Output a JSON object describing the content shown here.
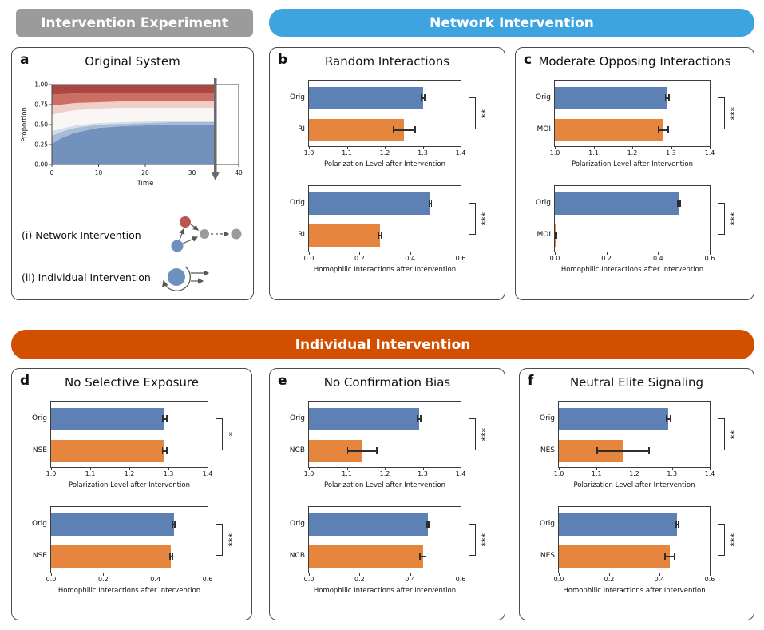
{
  "headers": {
    "experiment": "Intervention Experiment",
    "network": "Network Intervention",
    "individual": "Individual Intervention"
  },
  "colors": {
    "header_gray": "#9b9b9b",
    "header_blue": "#3ea4e0",
    "header_orange": "#d24f00",
    "orig_bar": "#5d81b4",
    "treat_bar": "#e6853e"
  },
  "panel_a": {
    "letter": "a",
    "title": "Original System",
    "items": [
      {
        "label": "(i) Network Intervention",
        "icon": "network-intervention-icon"
      },
      {
        "label": "(ii) Individual Intervention",
        "icon": "individual-intervention-icon"
      }
    ]
  },
  "panels": [
    {
      "letter": "b",
      "title": "Random Interactions",
      "chart_idx": [
        1,
        2
      ]
    },
    {
      "letter": "c",
      "title": "Moderate Opposing Interactions",
      "chart_idx": [
        3,
        4
      ]
    },
    {
      "letter": "d",
      "title": "No Selective Exposure",
      "chart_idx": [
        5,
        6
      ]
    },
    {
      "letter": "e",
      "title": "No Confirmation Bias",
      "chart_idx": [
        7,
        8
      ]
    },
    {
      "letter": "f",
      "title": "Neutral Elite Signaling",
      "chart_idx": [
        9,
        10
      ]
    }
  ],
  "chart_data": [
    {
      "type": "area",
      "panel": "a",
      "title": "Original System",
      "xlabel": "Time",
      "ylabel": "Proportion",
      "xlim": [
        0,
        40
      ],
      "ylim": [
        0,
        1
      ],
      "xticks": [
        "0",
        "10",
        "20",
        "30",
        "40"
      ],
      "yticks": [
        "0.00",
        "0.25",
        "0.50",
        "0.75",
        "1.00"
      ],
      "intervention_x": 35,
      "x": [
        0,
        2,
        5,
        10,
        15,
        20,
        25,
        30,
        35
      ],
      "series": [
        {
          "name": "opinion-strong-blue",
          "color": "#7292bd",
          "values": [
            0.26,
            0.33,
            0.4,
            0.46,
            0.48,
            0.49,
            0.5,
            0.5,
            0.5
          ]
        },
        {
          "name": "opinion-blue",
          "color": "#a6bcd6",
          "values": [
            0.1,
            0.08,
            0.06,
            0.04,
            0.03,
            0.03,
            0.03,
            0.03,
            0.03
          ]
        },
        {
          "name": "opinion-weak-blue",
          "color": "#d3deea",
          "values": [
            0.06,
            0.04,
            0.03,
            0.02,
            0.02,
            0.02,
            0.01,
            0.01,
            0.01
          ]
        },
        {
          "name": "opinion-neutral",
          "color": "#faf6f4",
          "values": [
            0.2,
            0.2,
            0.19,
            0.18,
            0.18,
            0.17,
            0.17,
            0.17,
            0.17
          ]
        },
        {
          "name": "opinion-weak-red",
          "color": "#f0cfc8",
          "values": [
            0.12,
            0.1,
            0.09,
            0.08,
            0.08,
            0.08,
            0.08,
            0.08,
            0.08
          ]
        },
        {
          "name": "opinion-red",
          "color": "#cc6e64",
          "values": [
            0.14,
            0.13,
            0.12,
            0.11,
            0.1,
            0.1,
            0.1,
            0.1,
            0.1
          ]
        },
        {
          "name": "opinion-strong-red",
          "color": "#a84840",
          "values": [
            0.12,
            0.12,
            0.11,
            0.11,
            0.11,
            0.11,
            0.11,
            0.11,
            0.11
          ]
        }
      ]
    },
    {
      "type": "bar",
      "panel": "b",
      "position": "top",
      "orientation": "horizontal",
      "categories": [
        "Orig",
        "RI"
      ],
      "values": [
        1.3,
        1.25
      ],
      "errors": [
        0.006,
        0.03
      ],
      "xlim": [
        1.0,
        1.4
      ],
      "xticks": [
        "1.0",
        "1.1",
        "1.2",
        "1.3",
        "1.4"
      ],
      "xlabel": "Polarization Level after Intervention",
      "significance": "**"
    },
    {
      "type": "bar",
      "panel": "b",
      "position": "bottom",
      "orientation": "horizontal",
      "categories": [
        "Orig",
        "RI"
      ],
      "values": [
        0.48,
        0.28
      ],
      "errors": [
        0.006,
        0.008
      ],
      "xlim": [
        0.0,
        0.6
      ],
      "xticks": [
        "0.0",
        "0.2",
        "0.4",
        "0.6"
      ],
      "xlabel": "Homophilic Interactions after Intervention",
      "significance": "***"
    },
    {
      "type": "bar",
      "panel": "c",
      "position": "top",
      "orientation": "horizontal",
      "categories": [
        "Orig",
        "MOI"
      ],
      "values": [
        1.29,
        1.28
      ],
      "errors": [
        0.006,
        0.013
      ],
      "xlim": [
        1.0,
        1.4
      ],
      "xticks": [
        "1.0",
        "1.1",
        "1.2",
        "1.3",
        "1.4"
      ],
      "xlabel": "Polarization Level after Intervention",
      "significance": "***"
    },
    {
      "type": "bar",
      "panel": "c",
      "position": "bottom",
      "orientation": "horizontal",
      "categories": [
        "Orig",
        "MOI"
      ],
      "values": [
        0.48,
        0.005
      ],
      "errors": [
        0.006,
        0.004
      ],
      "xlim": [
        0.0,
        0.6
      ],
      "xticks": [
        "0.0",
        "0.2",
        "0.4",
        "0.6"
      ],
      "xlabel": "Homophilic Interactions after Intervention",
      "significance": "***"
    },
    {
      "type": "bar",
      "panel": "d",
      "position": "top",
      "orientation": "horizontal",
      "categories": [
        "Orig",
        "NSE"
      ],
      "values": [
        1.29,
        1.29
      ],
      "errors": [
        0.006,
        0.007
      ],
      "xlim": [
        1.0,
        1.4
      ],
      "xticks": [
        "1.0",
        "1.1",
        "1.2",
        "1.3",
        "1.4"
      ],
      "xlabel": "Polarization Level after Intervention",
      "significance": "*"
    },
    {
      "type": "bar",
      "panel": "d",
      "position": "bottom",
      "orientation": "horizontal",
      "categories": [
        "Orig",
        "NSE"
      ],
      "values": [
        0.47,
        0.46
      ],
      "errors": [
        0.005,
        0.006
      ],
      "xlim": [
        0.0,
        0.6
      ],
      "xticks": [
        "0.0",
        "0.2",
        "0.4",
        "0.6"
      ],
      "xlabel": "Homophilic Interactions after Intervention",
      "significance": "***"
    },
    {
      "type": "bar",
      "panel": "e",
      "position": "top",
      "orientation": "horizontal",
      "categories": [
        "Orig",
        "NCB"
      ],
      "values": [
        1.29,
        1.14
      ],
      "errors": [
        0.006,
        0.04
      ],
      "xlim": [
        1.0,
        1.4
      ],
      "xticks": [
        "1.0",
        "1.1",
        "1.2",
        "1.3",
        "1.4"
      ],
      "xlabel": "Polarization Level after Intervention",
      "significance": "***"
    },
    {
      "type": "bar",
      "panel": "e",
      "position": "bottom",
      "orientation": "horizontal",
      "categories": [
        "Orig",
        "NCB"
      ],
      "values": [
        0.47,
        0.45
      ],
      "errors": [
        0.005,
        0.013
      ],
      "xlim": [
        0.0,
        0.6
      ],
      "xticks": [
        "0.0",
        "0.2",
        "0.4",
        "0.6"
      ],
      "xlabel": "Homophilic Interactions after Intervention",
      "significance": "***"
    },
    {
      "type": "bar",
      "panel": "f",
      "position": "top",
      "orientation": "horizontal",
      "categories": [
        "Orig",
        "NES"
      ],
      "values": [
        1.29,
        1.17
      ],
      "errors": [
        0.006,
        0.07
      ],
      "xlim": [
        1.0,
        1.4
      ],
      "xticks": [
        "1.0",
        "1.1",
        "1.2",
        "1.3",
        "1.4"
      ],
      "xlabel": "Polarization Level after Intervention",
      "significance": "**"
    },
    {
      "type": "bar",
      "panel": "f",
      "position": "bottom",
      "orientation": "horizontal",
      "categories": [
        "Orig",
        "NES"
      ],
      "values": [
        0.47,
        0.44
      ],
      "errors": [
        0.005,
        0.02
      ],
      "xlim": [
        0.0,
        0.6
      ],
      "xticks": [
        "0.0",
        "0.2",
        "0.4",
        "0.6"
      ],
      "xlabel": "Homophilic Interactions after Intervention",
      "significance": "***"
    }
  ]
}
